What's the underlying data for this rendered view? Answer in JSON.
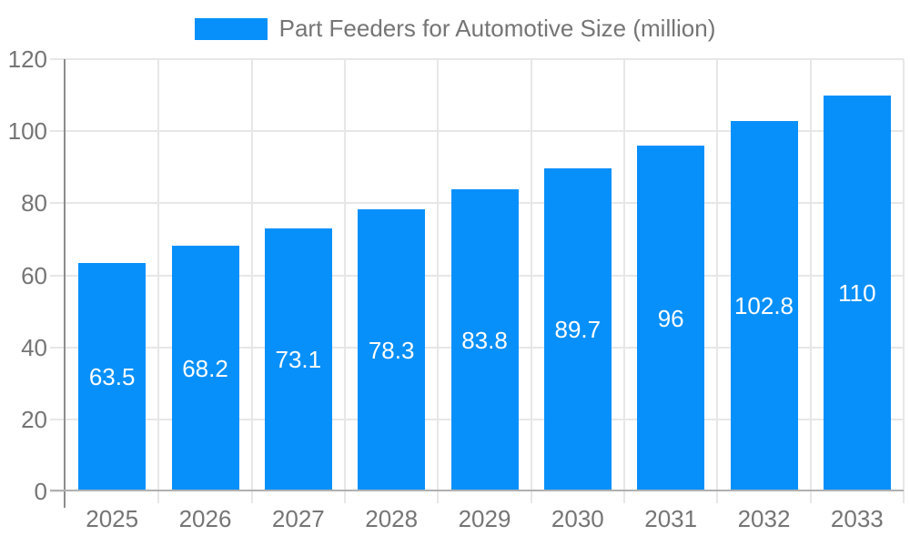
{
  "chart_data": {
    "type": "bar",
    "title": "Part Feeders for Automotive Size (million)",
    "legend": "Part Feeders for Automotive Size (million)",
    "legend_position": "top",
    "categories": [
      "2025",
      "2026",
      "2027",
      "2028",
      "2029",
      "2030",
      "2031",
      "2032",
      "2033"
    ],
    "values": [
      63.5,
      68.2,
      73.1,
      78.3,
      83.8,
      89.7,
      96,
      102.8,
      110
    ],
    "value_labels": [
      "63.5",
      "68.2",
      "73.1",
      "78.3",
      "83.8",
      "89.7",
      "96",
      "102.8",
      "110"
    ],
    "xlabel": "",
    "ylabel": "",
    "ylim": [
      0,
      120
    ],
    "yticks": [
      0,
      20,
      40,
      60,
      80,
      100,
      120
    ],
    "grid": true,
    "colors": {
      "bar": "#0890FA",
      "tick_text": "#757575",
      "legend_text": "#757575",
      "value_text": "#FFFFFF",
      "gridline": "#E7E7E7",
      "axis_line": "#8C8C8C",
      "baseline": "#B0B0B0",
      "background": "#FFFFFF"
    }
  }
}
